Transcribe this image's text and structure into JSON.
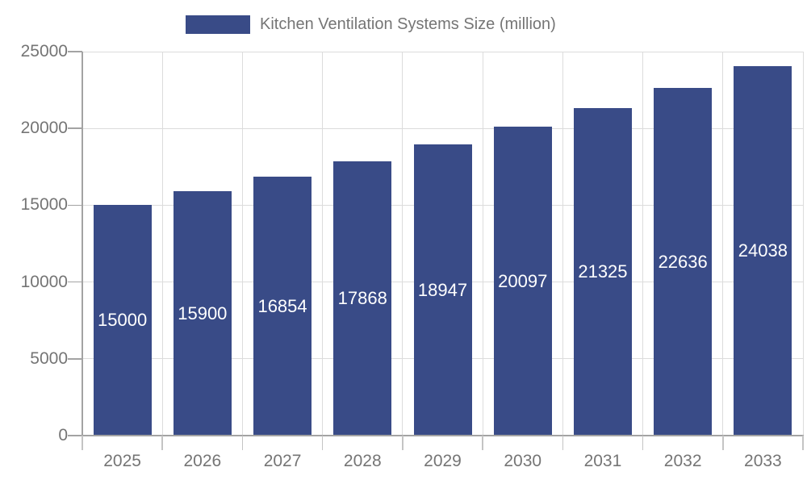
{
  "chart_data": {
    "type": "bar",
    "title": "Kitchen Ventilation Systems Size (million)",
    "categories": [
      "2025",
      "2026",
      "2027",
      "2028",
      "2029",
      "2030",
      "2031",
      "2032",
      "2033"
    ],
    "values": [
      15000,
      15900,
      16854,
      17868,
      18947,
      20097,
      21325,
      22636,
      24038
    ],
    "xlabel": "",
    "ylabel": "",
    "ylim": [
      0,
      25000
    ],
    "yticks": [
      0,
      5000,
      10000,
      15000,
      20000,
      25000
    ],
    "grid": true,
    "legend_position": "top",
    "bar_labels": "inside-middle"
  },
  "legend": {
    "label": "Kitchen Ventilation Systems Size (million)"
  },
  "colors": {
    "bar": "#394B87",
    "grid": "#DCDCDC",
    "axis": "#A3A3A3",
    "tick": "#C4C4C4",
    "tick_text": "#757575",
    "legend_text": "#757575",
    "value_label_text": "#FFFFFF",
    "background": "#FFFFFF"
  }
}
